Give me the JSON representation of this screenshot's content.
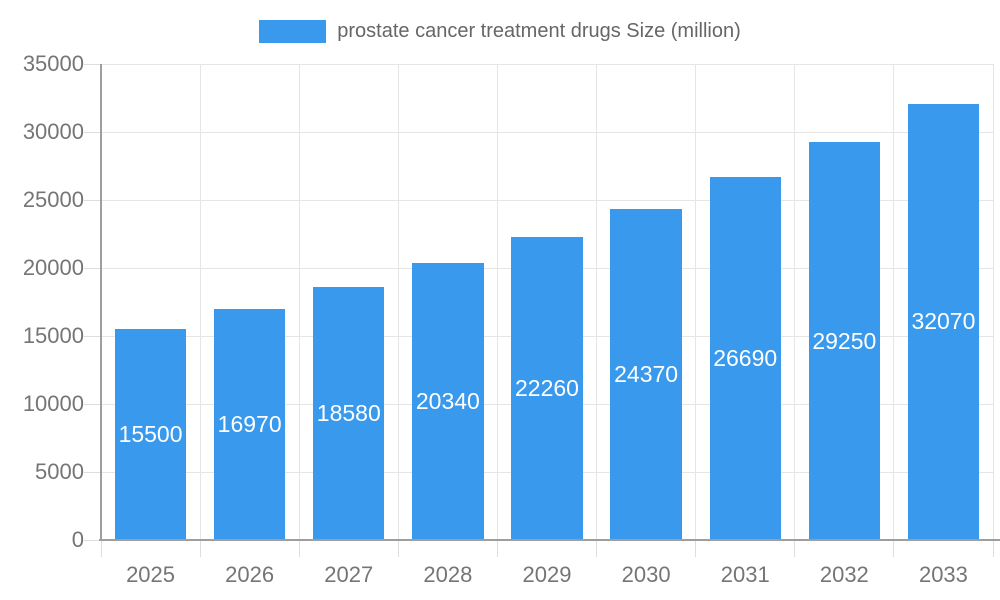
{
  "chart_data": {
    "type": "bar",
    "title": "prostate cancer treatment drugs Size (million)",
    "categories": [
      "2025",
      "2026",
      "2027",
      "2028",
      "2029",
      "2030",
      "2031",
      "2032",
      "2033"
    ],
    "values": [
      15500,
      16970,
      18580,
      20340,
      22260,
      24370,
      26690,
      29250,
      32070
    ],
    "xlabel": "",
    "ylabel": "",
    "ylim": [
      0,
      35000
    ],
    "ytick_step": 5000,
    "yticks": [
      0,
      5000,
      10000,
      15000,
      20000,
      25000,
      30000,
      35000
    ],
    "grid": true,
    "legend_position": "top",
    "value_labels": "inside-center",
    "colors": {
      "bar": "#3999ec",
      "value_label": "#ffffff",
      "axis_text": "#757575",
      "legend_text": "#666666",
      "grid_line": "#e5e5e5",
      "axis_line": "#9e9e9e",
      "tick_mark": "#dddddd",
      "background": "#ffffff"
    }
  }
}
